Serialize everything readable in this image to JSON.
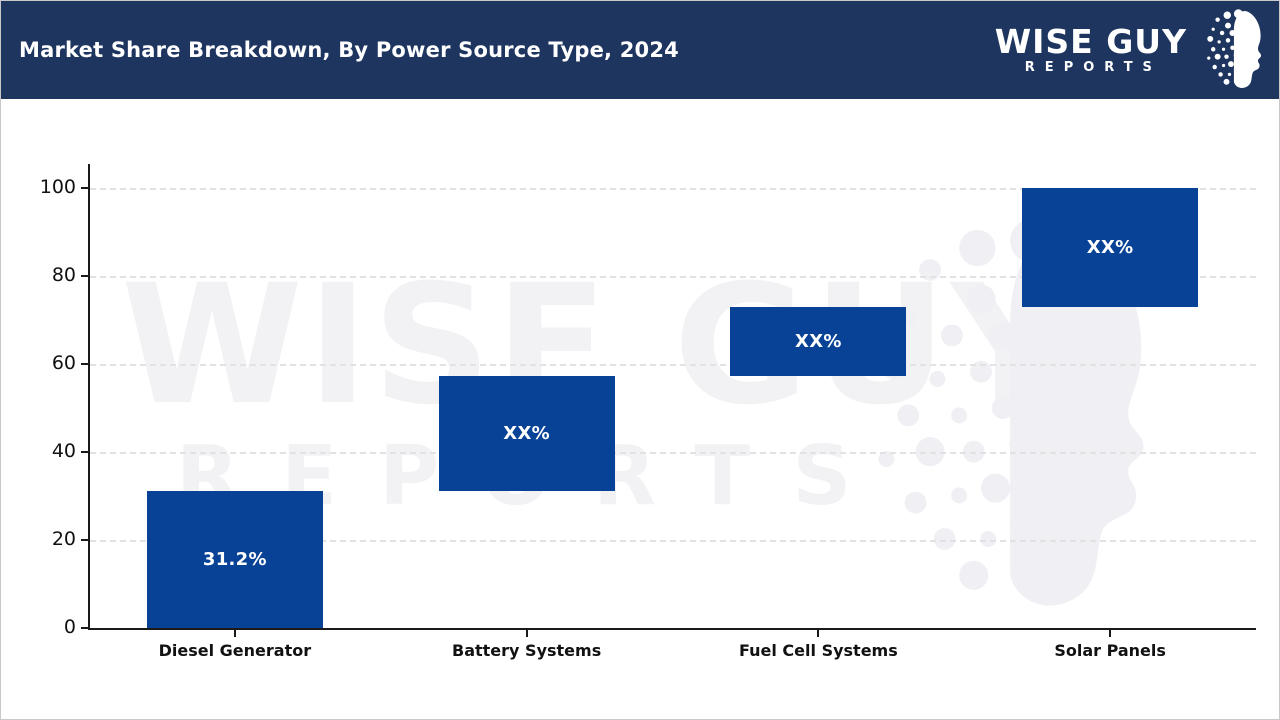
{
  "header": {
    "title": "Market Share Breakdown, By Power Source Type, 2024",
    "bg_color": "#1e3560",
    "logo": {
      "line1": "WISE GUY",
      "line2": "REPORTS"
    }
  },
  "watermark": {
    "line1": "WISE GUY",
    "line2": "REPORTS"
  },
  "chart_data": {
    "type": "bar",
    "subtype": "waterfall",
    "title": "Market Share Breakdown, By Power Source Type, 2024",
    "categories": [
      "Diesel Generator",
      "Battery Systems",
      "Fuel Cell Systems",
      "Solar Panels"
    ],
    "series": [
      {
        "category": "Diesel Generator",
        "start": 0,
        "end": 31.2,
        "label": "31.2%"
      },
      {
        "category": "Battery Systems",
        "start": 31.2,
        "end": 57.2,
        "label": "XX%"
      },
      {
        "category": "Fuel Cell Systems",
        "start": 57.2,
        "end": 72.9,
        "label": "XX%"
      },
      {
        "category": "Solar Panels",
        "start": 72.9,
        "end": 100,
        "label": "XX%"
      }
    ],
    "xlabel": "",
    "ylabel": "",
    "yticks": [
      0,
      20,
      40,
      60,
      80,
      100
    ],
    "ylim": [
      0,
      105.5
    ],
    "grid": "horizontal-dashed",
    "legend": "none",
    "bar_color": "#084296",
    "label_color": "#ffffff",
    "axis_color": "#1a1a1a",
    "grid_color": "#e2e2e2"
  }
}
